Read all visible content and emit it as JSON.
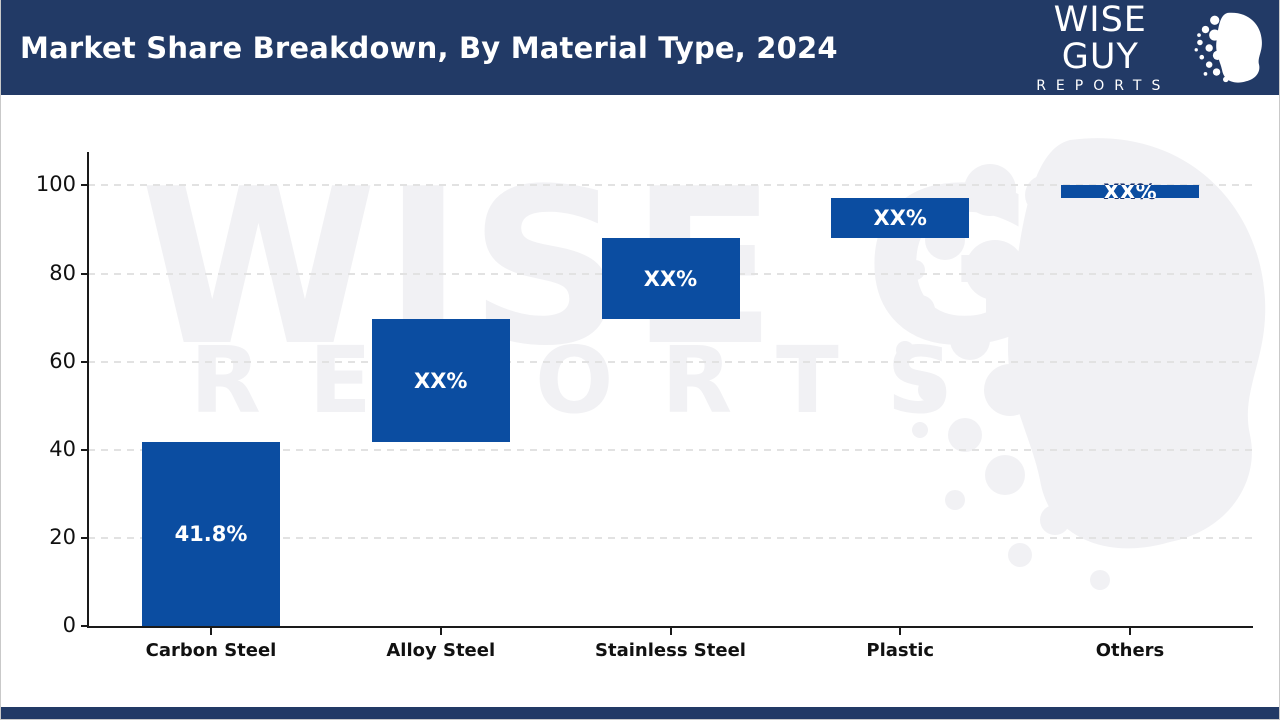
{
  "header": {
    "title": "Market Share Breakdown, By Material Type, 2024",
    "logo": {
      "line1": "WISE GUY",
      "line2": "REPORTS"
    }
  },
  "watermark": {
    "line1": "WISE GU",
    "line2": "REPORTS"
  },
  "colors": {
    "header_bg": "#223a66",
    "bar_blue": "#0b4da1",
    "bar_label_inside": "#ffffff",
    "bar_label_outside": "#17306b",
    "gridline": "#e2e2e2",
    "axis": "#1a1a1a",
    "watermark": "#f1f1f4"
  },
  "chart_data": {
    "type": "bar",
    "variant": "waterfall-floating-bars",
    "title": "Market Share Breakdown, By Material Type, 2024",
    "xlabel": "",
    "ylabel": "",
    "categories": [
      "Carbon Steel",
      "Alloy Steel",
      "Stainless Steel",
      "Plastic",
      "Others"
    ],
    "bars": [
      {
        "category": "Carbon Steel",
        "label": "41.8%",
        "start": 0,
        "end": 41.8,
        "value": 41.8
      },
      {
        "category": "Alloy Steel",
        "label": "XX%",
        "start": 41.8,
        "end": 69.6,
        "value": null
      },
      {
        "category": "Stainless Steel",
        "label": "XX%",
        "start": 69.6,
        "end": 88.1,
        "value": null
      },
      {
        "category": "Plastic",
        "label": "XX%",
        "start": 88.1,
        "end": 97.1,
        "value": null
      },
      {
        "category": "Others",
        "label": "XX%",
        "start": 97.1,
        "end": 100,
        "value": null
      }
    ],
    "yticks": [
      0,
      20,
      40,
      60,
      80,
      100
    ],
    "ylim": [
      0,
      107.5
    ],
    "grid": "dashed-horizontal",
    "legend": "none"
  }
}
